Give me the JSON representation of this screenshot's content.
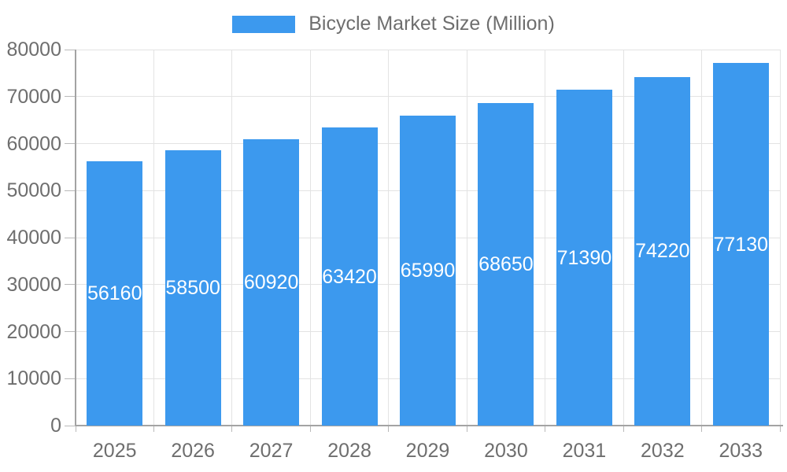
{
  "legend": {
    "label": "Bicycle Market Size (Million)"
  },
  "colors": {
    "bar": "#3C99EE",
    "text": "#6e6e6e",
    "grid": "#e3e3e3",
    "tick": "#b9b9b9",
    "axis": "#a3a3a3",
    "value_label": "#ffffff",
    "background": "#ffffff"
  },
  "chart_data": {
    "type": "bar",
    "title": "Bicycle Market Size (Million)",
    "categories": [
      "2025",
      "2026",
      "2027",
      "2028",
      "2029",
      "2030",
      "2031",
      "2032",
      "2033"
    ],
    "values": [
      56160,
      58500,
      60920,
      63420,
      65990,
      68650,
      71390,
      74220,
      77130
    ],
    "xlabel": "",
    "ylabel": "",
    "ylim": [
      0,
      80000
    ],
    "ytick_step": 10000,
    "ytick_labels": [
      "0",
      "10000",
      "20000",
      "30000",
      "40000",
      "50000",
      "60000",
      "70000",
      "80000"
    ],
    "grid": true,
    "legend_position": "top",
    "value_labels": "inside-center"
  }
}
